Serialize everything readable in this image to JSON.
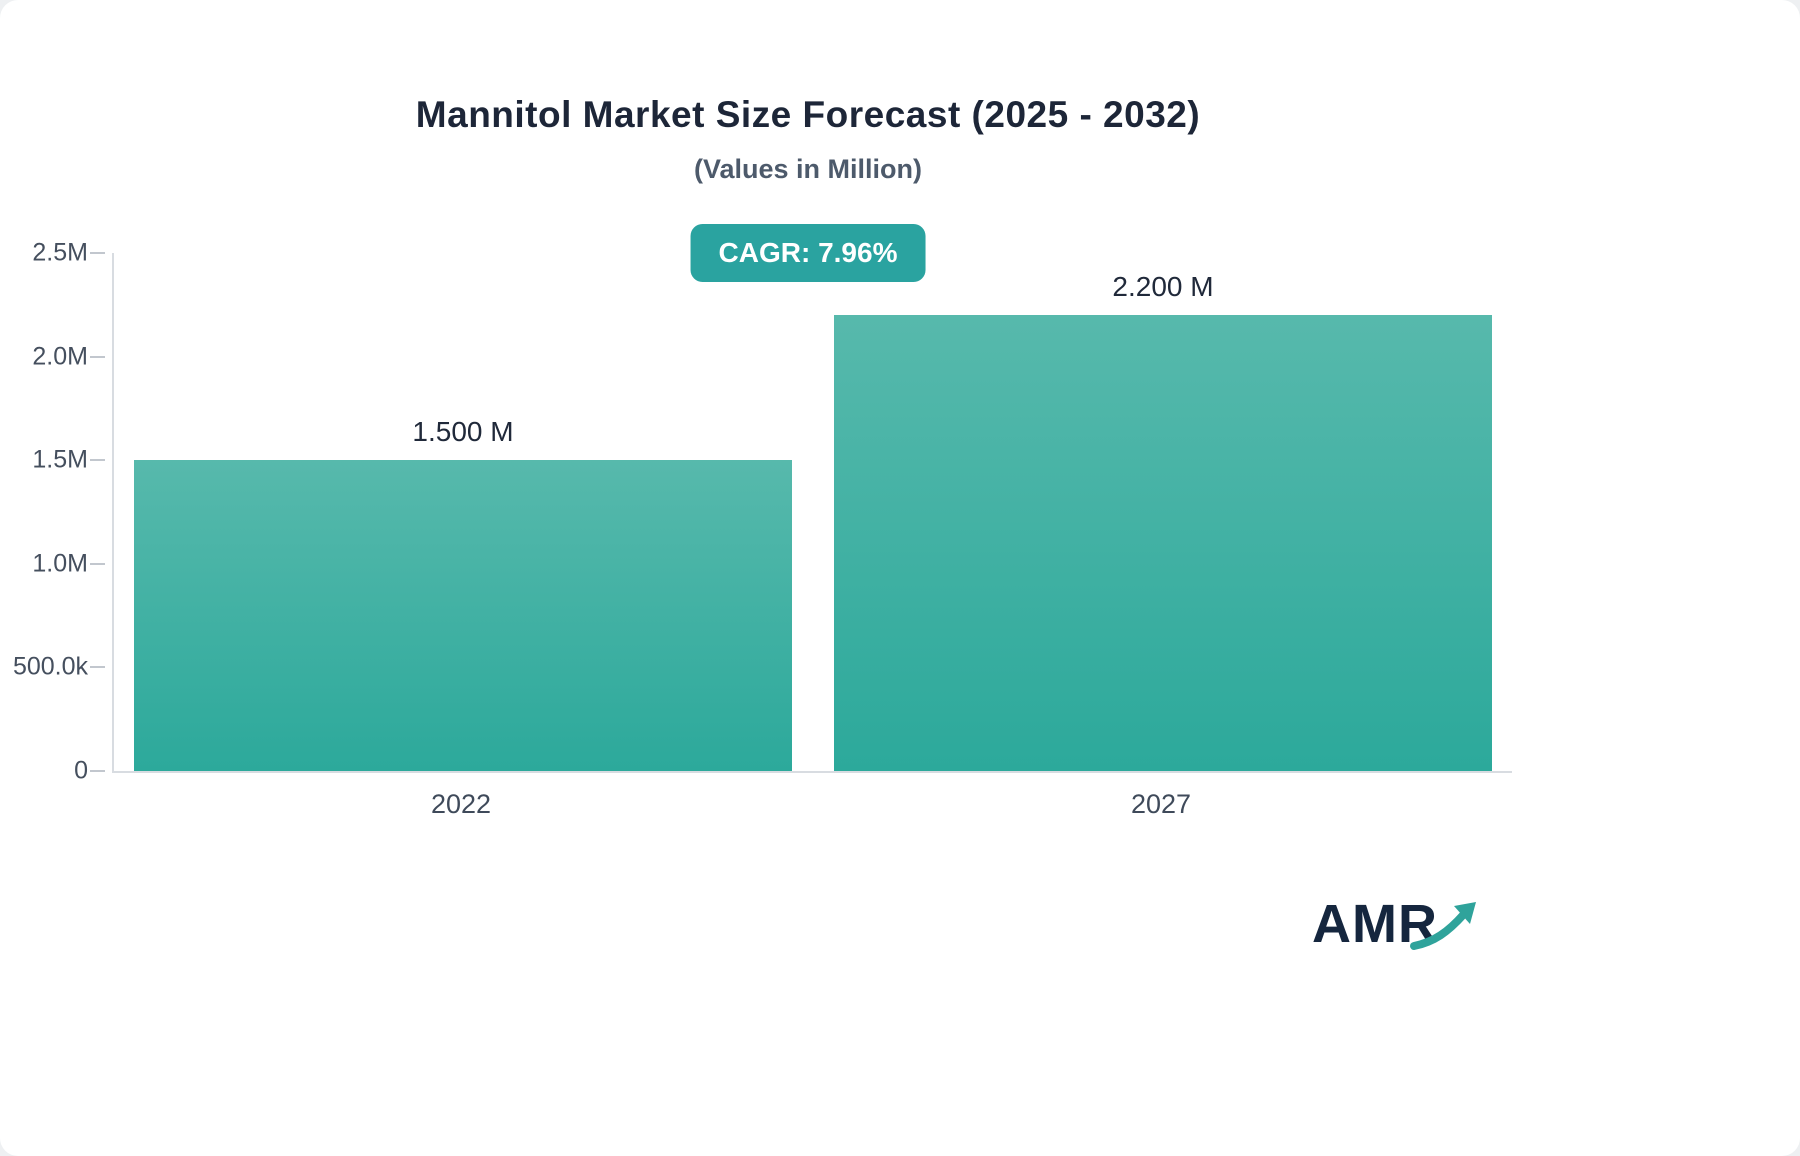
{
  "title": "Mannitol Market Size Forecast (2025 - 2032)",
  "subtitle": "(Values in Million)",
  "badge": {
    "label": "CAGR: 7.96%",
    "color": "#2aa3a0"
  },
  "logo": {
    "text": "AMR",
    "arrow_color": "#2fa39b"
  },
  "chart_data": {
    "type": "bar",
    "title": "Mannitol Market Size Forecast (2025 - 2032)",
    "subtitle": "(Values in Million)",
    "categories": [
      "2022",
      "2027"
    ],
    "values": [
      1500000,
      2200000
    ],
    "value_labels": [
      "1.500 M",
      "2.200 M"
    ],
    "xlabel": "",
    "ylabel": "",
    "ylim": [
      0,
      2500000
    ],
    "yticks": [
      {
        "value": 0,
        "label": "0"
      },
      {
        "value": 500000,
        "label": "500.0k"
      },
      {
        "value": 1000000,
        "label": "1.0M"
      },
      {
        "value": 1500000,
        "label": "1.5M"
      },
      {
        "value": 2000000,
        "label": "2.0M"
      },
      {
        "value": 2500000,
        "label": "2.5M"
      }
    ],
    "grid": false,
    "legend": "none",
    "bar_color_top": "#57b9ac",
    "bar_color_bottom": "#2ca99b",
    "cagr_annotation": "CAGR: 7.96%"
  }
}
